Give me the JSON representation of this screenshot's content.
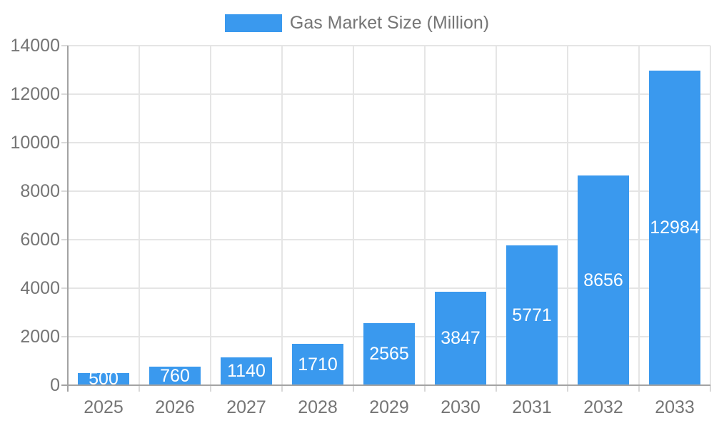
{
  "legend": {
    "label": "Gas Market Size (Million)"
  },
  "chart_data": {
    "type": "bar",
    "title": "Gas Market Size (Million)",
    "categories": [
      "2025",
      "2026",
      "2027",
      "2028",
      "2029",
      "2030",
      "2031",
      "2032",
      "2033"
    ],
    "values": [
      500,
      760,
      1140,
      1710,
      2565,
      3847,
      5771,
      8656,
      12984
    ],
    "series": [
      {
        "name": "Gas Market Size (Million)",
        "values": [
          500,
          760,
          1140,
          1710,
          2565,
          3847,
          5771,
          8656,
          12984
        ]
      }
    ],
    "yticks": [
      "0",
      "2000",
      "4000",
      "6000",
      "8000",
      "10000",
      "12000",
      "14000"
    ],
    "ylim": [
      0,
      14000
    ],
    "xlabel": "",
    "ylabel": "",
    "grid": "on",
    "legend_position": "top-center",
    "value_labels": "inside-center",
    "colors": {
      "bar": "#3A99EE",
      "bar_label": "#FFFFFF",
      "axis_text": "#757575",
      "grid_line": "#E5E5E5",
      "tick_line": "#D9D9D9",
      "axis_line": "#A3A3A3",
      "background": "#FFFFFF"
    }
  }
}
